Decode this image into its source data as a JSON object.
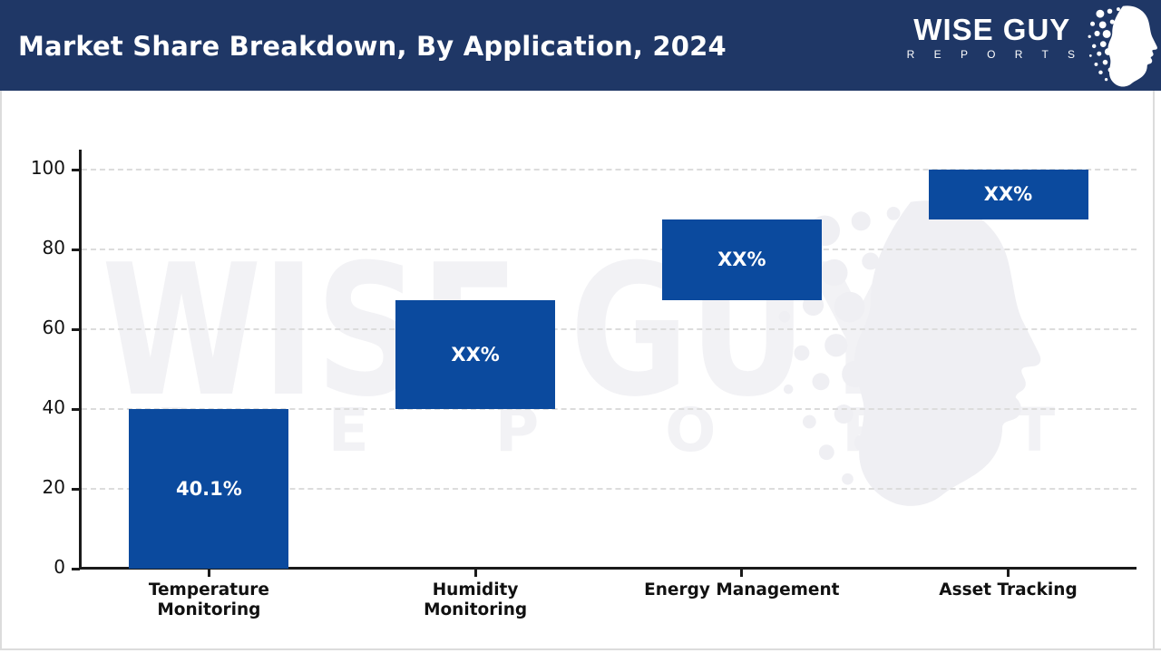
{
  "header": {
    "title": "Market Share Breakdown, By Application, 2024",
    "logo": {
      "line1": "WISE GUY",
      "line2": "R E P O R T S"
    }
  },
  "watermark": {
    "line1": "WISE GUY",
    "line2": "R E P O R T S"
  },
  "colors": {
    "header_bg": "#1f3766",
    "bar": "#0b4a9e",
    "bar_label_text": "#ffffff",
    "grid": "#dcdcdc",
    "axis": "#1a1a1a",
    "tick_text": "#111111",
    "watermark_text": "#f2f2f5",
    "watermark_face": "#efeff3",
    "frame": "#dcdcdc"
  },
  "chart_data": {
    "type": "bar",
    "subtype": "waterfall-floating-bars",
    "title": "Market Share Breakdown, By Application, 2024",
    "categories": [
      "Temperature Monitoring",
      "Humidity Monitoring",
      "Energy Management",
      "Asset Tracking"
    ],
    "xtick_labels": [
      "Temperature\nMonitoring",
      "Humidity\nMonitoring",
      "Energy Management",
      "Asset Tracking"
    ],
    "segments": [
      {
        "category": "Temperature Monitoring",
        "start": 0,
        "end": 40.1,
        "label": "40.1%"
      },
      {
        "category": "Humidity Monitoring",
        "start": 40.1,
        "end": 67.3,
        "label": "XX%"
      },
      {
        "category": "Energy Management",
        "start": 67.3,
        "end": 87.6,
        "label": "XX%"
      },
      {
        "category": "Asset Tracking",
        "start": 87.6,
        "end": 99.9,
        "label": "XX%"
      }
    ],
    "yticks": [
      0,
      20,
      40,
      60,
      80,
      100
    ],
    "ylim": [
      0,
      105
    ],
    "xlabel": "",
    "ylabel": "",
    "grid": "horizontal-dashed",
    "legend": "none"
  }
}
